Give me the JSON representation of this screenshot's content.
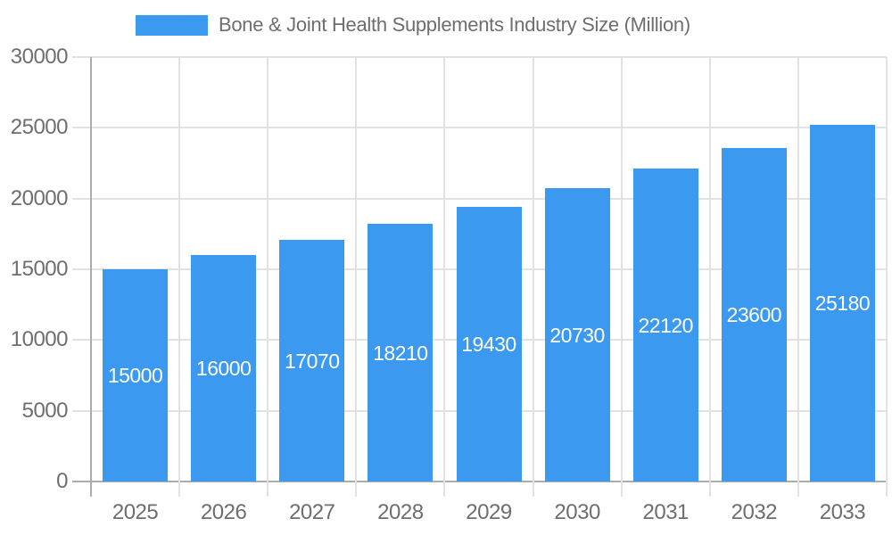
{
  "chart_data": {
    "type": "bar",
    "title": "Bone & Joint Health Supplements Industry Size (Million)",
    "categories": [
      "2025",
      "2026",
      "2027",
      "2028",
      "2029",
      "2030",
      "2031",
      "2032",
      "2033"
    ],
    "values": [
      15000,
      16000,
      17070,
      18210,
      19430,
      20730,
      22120,
      23600,
      25180
    ],
    "xlabel": "",
    "ylabel": "",
    "ylim": [
      0,
      30000
    ],
    "ytick_step": 5000,
    "ytick_labels": [
      "0",
      "5000",
      "10000",
      "15000",
      "20000",
      "25000",
      "30000"
    ],
    "grid": true,
    "legend_position": "top",
    "value_labels": "inside-center-white"
  },
  "colors": {
    "bar": "#3B99F0",
    "gridline": "#E2E2E2",
    "axis": "#ADADAD",
    "tick_text": "#6E6E6E",
    "value_label_text": "#FFFFFF",
    "background": "#FFFFFF"
  }
}
